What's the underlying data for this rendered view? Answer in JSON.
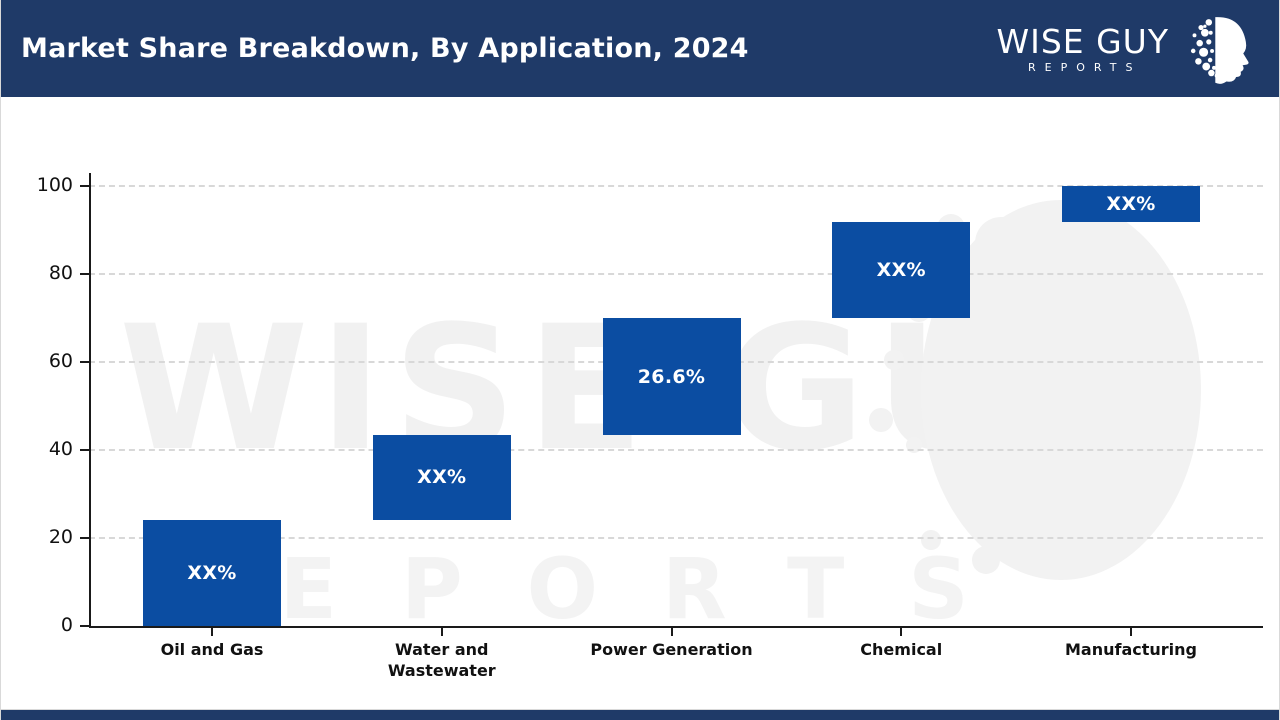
{
  "header": {
    "title": "Market Share Breakdown, By Application, 2024",
    "brand": {
      "line1": "WISE GUY",
      "line2": "REPORTS"
    }
  },
  "watermark": {
    "line1": "WISE GUY",
    "line2": "REPORTS"
  },
  "colors": {
    "header_bg": "#1f3a68",
    "footer_bg": "#1f3a68",
    "bar": "#0b4da2",
    "bar_label_text": "#ffffff",
    "axis": "#1a1a1a",
    "gridline": "#d8d8d8",
    "watermark": "#f1f1f1"
  },
  "chart_data": {
    "type": "bar",
    "subtype": "waterfall",
    "title": "Market Share Breakdown, By Application, 2024",
    "categories": [
      "Oil and Gas",
      "Water and\nWastewater",
      "Power Generation",
      "Chemical",
      "Manufacturing"
    ],
    "segments": [
      {
        "category": "Oil and Gas",
        "start": 0,
        "end": 24.1,
        "value": 24.1,
        "label": "XX%"
      },
      {
        "category": "Water and Wastewater",
        "start": 24.1,
        "end": 43.4,
        "value": 19.3,
        "label": "XX%"
      },
      {
        "category": "Power Generation",
        "start": 43.4,
        "end": 70.0,
        "value": 26.6,
        "label": "26.6%"
      },
      {
        "category": "Chemical",
        "start": 70.0,
        "end": 91.8,
        "value": 21.8,
        "label": "XX%"
      },
      {
        "category": "Manufacturing",
        "start": 91.8,
        "end": 100,
        "value": 8.2,
        "label": "XX%"
      }
    ],
    "xlabel": "",
    "ylabel": "",
    "ylim": [
      0,
      100
    ],
    "yticks": [
      0,
      20,
      40,
      60,
      80,
      100
    ],
    "grid": "horizontal-dashed",
    "legend": "none"
  }
}
